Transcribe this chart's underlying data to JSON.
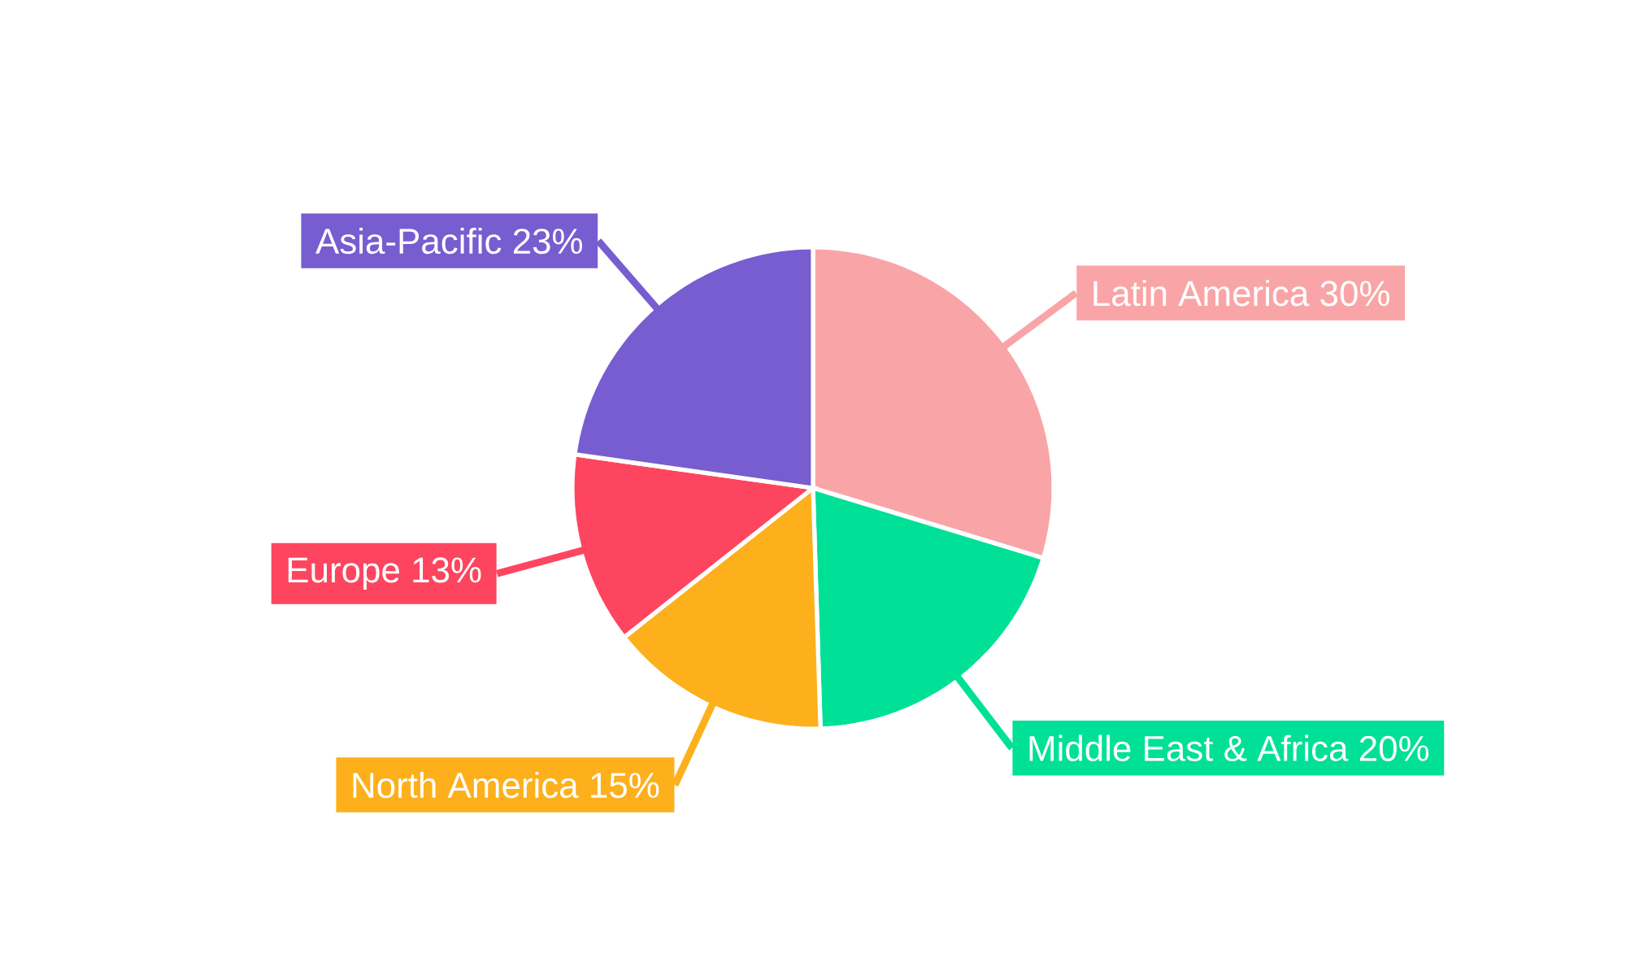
{
  "chart_data": {
    "type": "pie",
    "categories": [
      "Latin America",
      "Middle East & Africa",
      "North America",
      "Europe",
      "Asia-Pacific"
    ],
    "values": [
      30,
      20,
      15,
      13,
      23
    ],
    "value_labels": [
      "30%",
      "20%",
      "15%",
      "13%",
      "23%"
    ],
    "colors": [
      "#f9a5a7",
      "#00e096",
      "#fdb01b",
      "#fe4560",
      "#775dd0"
    ]
  }
}
